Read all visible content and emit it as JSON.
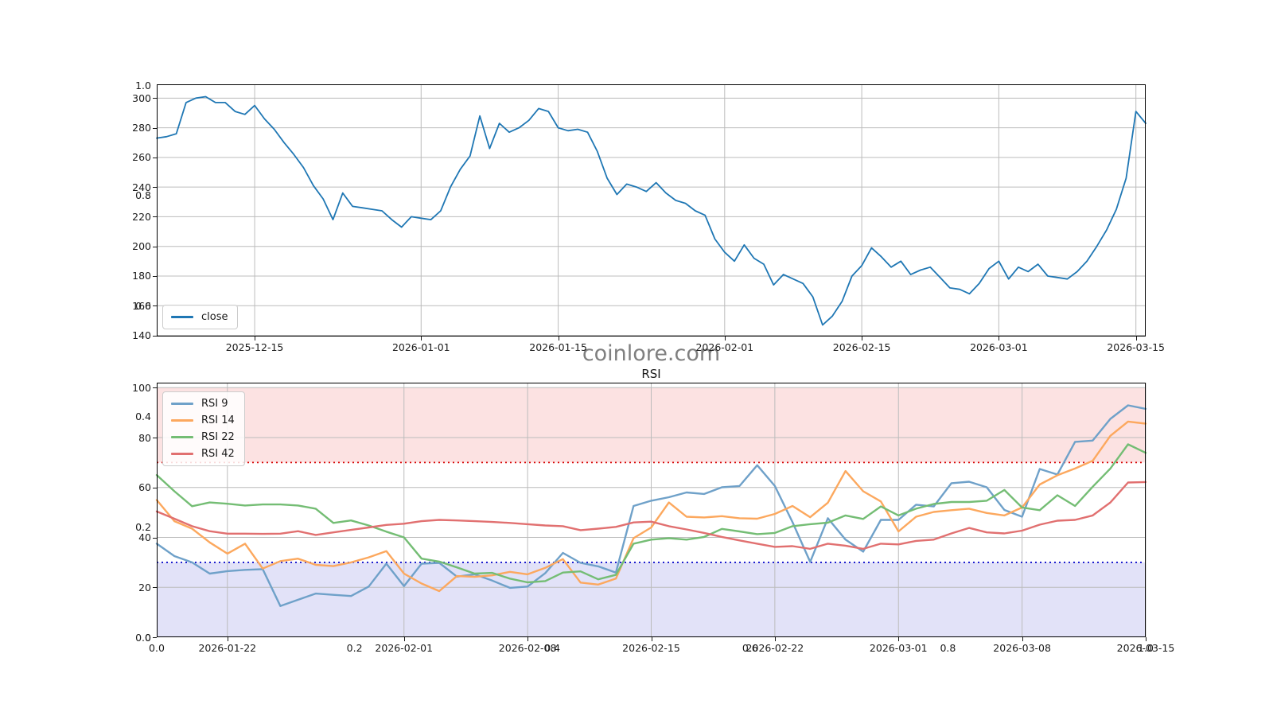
{
  "watermark": {
    "text": "coinlore.com"
  },
  "titles": {
    "rsi_chart_title": "RSI"
  },
  "colors": {
    "close_line": "#1f77b4",
    "rsi9_line": "#6fa1c9",
    "rsi14_line": "#fca85e",
    "rsi22_line": "#74bd74",
    "rsi42_line": "#e17070",
    "overbought_band": "#fce2e2",
    "oversold_band": "#e2e2f8",
    "overbought_dotted_line": "#d60000",
    "oversold_dotted_line": "#0000c8",
    "grid": "#bcbcbc",
    "spine": "#000000"
  },
  "legend_top": {
    "items": [
      {
        "label": "close",
        "color": "#1f77b4"
      }
    ]
  },
  "legend_rsi": {
    "items": [
      {
        "label": "RSI 9",
        "color": "#6fa1c9"
      },
      {
        "label": "RSI 14",
        "color": "#fca85e"
      },
      {
        "label": "RSI 22",
        "color": "#74bd74"
      },
      {
        "label": "RSI 42",
        "color": "#e17070"
      }
    ]
  },
  "hidden_axis": {
    "yticks": [
      {
        "label": "1.0",
        "t": 1.0
      },
      {
        "label": "0.8",
        "t": 0.8
      },
      {
        "label": "0.6",
        "t": 0.6
      },
      {
        "label": "0.4",
        "t": 0.4
      },
      {
        "label": "0.2",
        "t": 0.2
      },
      {
        "label": "0.0",
        "t": 0.0
      }
    ],
    "xticks": [
      {
        "label": "0.0",
        "t": 0.0
      },
      {
        "label": "0.2",
        "t": 0.2
      },
      {
        "label": "0.4",
        "t": 0.4
      },
      {
        "label": "0.6",
        "t": 0.6
      },
      {
        "label": "0.8",
        "t": 0.8
      },
      {
        "label": "1.0",
        "t": 1.0
      }
    ]
  },
  "chart_data": [
    {
      "type": "line",
      "title": "",
      "xlabel": "",
      "ylabel": "",
      "grid": true,
      "legend_position": "lower left",
      "x_start_date": "2025-12-05",
      "x_end_date": "2026-03-16",
      "ylim": [
        139.2,
        309.3
      ],
      "yticks": [
        {
          "label": "300",
          "v": 300
        },
        {
          "label": "280",
          "v": 280
        },
        {
          "label": "260",
          "v": 260
        },
        {
          "label": "240",
          "v": 240
        },
        {
          "label": "220",
          "v": 220
        },
        {
          "label": "200",
          "v": 200
        },
        {
          "label": "180",
          "v": 180
        },
        {
          "label": "160",
          "v": 160
        },
        {
          "label": "140",
          "v": 140
        }
      ],
      "xticks": [
        {
          "label": "2025-12-15",
          "day": 10
        },
        {
          "label": "2026-01-01",
          "day": 27
        },
        {
          "label": "2026-01-15",
          "day": 41
        },
        {
          "label": "2026-02-01",
          "day": 58
        },
        {
          "label": "2026-02-15",
          "day": 72
        },
        {
          "label": "2026-03-01",
          "day": 86
        },
        {
          "label": "2026-03-15",
          "day": 100
        }
      ],
      "series": [
        {
          "name": "close",
          "color": "#1f77b4",
          "width": 1.8,
          "values": [
            273,
            274,
            276,
            297,
            300,
            301,
            297,
            297,
            291,
            289,
            295,
            286,
            279,
            270,
            262,
            253,
            241,
            232,
            218,
            236,
            227,
            226,
            225,
            224,
            218,
            213,
            220,
            219,
            218,
            224,
            240,
            252,
            261,
            288,
            266,
            283,
            277,
            280,
            285,
            293,
            291,
            280,
            278,
            279,
            277,
            264,
            246,
            235,
            242,
            240,
            237,
            243,
            236,
            231,
            229,
            224,
            221,
            205,
            196,
            190,
            201,
            192,
            188,
            174,
            181,
            178,
            175,
            166,
            147,
            153,
            163,
            180,
            187,
            199,
            193,
            186,
            190,
            181,
            184,
            186,
            179,
            172,
            171,
            168,
            175,
            185,
            190,
            178,
            186,
            183,
            188,
            180,
            179,
            178,
            183,
            190,
            200,
            211,
            225,
            246,
            291,
            283
          ]
        }
      ]
    },
    {
      "type": "line",
      "title": "RSI",
      "xlabel": "",
      "ylabel": "",
      "grid": true,
      "legend_position": "upper left",
      "x_start_date": "2026-01-18",
      "x_end_date": "2026-03-15",
      "ylim": [
        0,
        102
      ],
      "bands": [
        {
          "from": 70,
          "to": 100,
          "color": "#fce2e2",
          "name": "overbought-zone"
        },
        {
          "from": 0,
          "to": 30,
          "color": "#e2e2f8",
          "name": "oversold-zone"
        }
      ],
      "hlines": [
        {
          "v": 70,
          "color": "#d60000",
          "style": "dotted",
          "name": "overbought-threshold"
        },
        {
          "v": 30,
          "color": "#0000c8",
          "style": "dotted",
          "name": "oversold-threshold"
        }
      ],
      "yticks": [
        {
          "label": "100",
          "v": 100
        },
        {
          "label": "80",
          "v": 80
        },
        {
          "label": "60",
          "v": 60
        },
        {
          "label": "40",
          "v": 40
        },
        {
          "label": "20",
          "v": 20
        },
        {
          "label": "0",
          "v": 0
        }
      ],
      "xticks": [
        {
          "label": "2026-01-22",
          "day": 4
        },
        {
          "label": "2026-02-01",
          "day": 14
        },
        {
          "label": "2026-02-08",
          "day": 21
        },
        {
          "label": "2026-02-15",
          "day": 28
        },
        {
          "label": "2026-02-22",
          "day": 35
        },
        {
          "label": "2026-03-01",
          "day": 42
        },
        {
          "label": "2026-03-08",
          "day": 49
        },
        {
          "label": "2026-03-15",
          "day": 56
        }
      ],
      "series": [
        {
          "name": "RSI 9",
          "color": "#6fa1c9",
          "width": 2.4,
          "values": [
            37.5,
            32.5,
            30,
            25.5,
            26.5,
            27,
            27.3,
            12.5,
            15,
            17.5,
            17,
            16.5,
            20.3,
            29.5,
            20.5,
            29.5,
            29.8,
            24.3,
            25.2,
            22.7,
            19.8,
            20.3,
            25.7,
            33.8,
            29.8,
            28.4,
            25.9,
            52.6,
            54.7,
            56.1,
            58,
            57.4,
            60.1,
            60.6,
            68.9,
            60.6,
            46.1,
            30.2,
            47.7,
            39.1,
            34.3,
            47,
            47,
            53.1,
            52.4,
            61.7,
            62.3,
            60.1,
            51,
            48.3,
            67.4,
            65.2,
            78.3,
            78.8,
            87.5,
            92.9,
            91.5
          ]
        },
        {
          "name": "RSI 14",
          "color": "#fca85e",
          "width": 2.4,
          "values": [
            55,
            46.5,
            43.5,
            38,
            33.5,
            37.5,
            27.5,
            30.5,
            31.5,
            29,
            28.5,
            30,
            32,
            34.5,
            25.5,
            21.5,
            18.5,
            24.5,
            24.2,
            24.8,
            26.2,
            25.2,
            27.8,
            31.3,
            21.9,
            21.1,
            23.5,
            39.7,
            44,
            54,
            48.3,
            48,
            48.5,
            47.7,
            47.5,
            49.4,
            52.6,
            48.1,
            53.9,
            66.6,
            58.5,
            54.4,
            42.4,
            48.3,
            50.2,
            50.9,
            51.5,
            49.8,
            48.8,
            52,
            61.2,
            64.9,
            67.6,
            70.7,
            80.7,
            86.4,
            85.6
          ]
        },
        {
          "name": "RSI 22",
          "color": "#74bd74",
          "width": 2.4,
          "values": [
            65,
            58.5,
            52.5,
            54,
            53.5,
            52.8,
            53.2,
            53.2,
            52.8,
            51.5,
            45.8,
            46.8,
            44.8,
            42.3,
            40,
            31.5,
            30.3,
            28,
            25.5,
            25.8,
            23.5,
            22,
            22.5,
            25.9,
            26.4,
            23.2,
            25,
            37.5,
            39.1,
            39.7,
            39.1,
            40.2,
            43.4,
            42.4,
            41.3,
            41.8,
            44.5,
            45.3,
            45.9,
            48.8,
            47.4,
            52.4,
            48.8,
            51.5,
            53.4,
            54.2,
            54.2,
            54.7,
            59,
            52,
            50.9,
            56.9,
            52.6,
            60.3,
            67.6,
            77.3,
            73.9
          ]
        },
        {
          "name": "RSI 42",
          "color": "#e17070",
          "width": 2.4,
          "values": [
            50.4,
            47.5,
            44.5,
            42.5,
            41.5,
            41.5,
            41.4,
            41.5,
            42.5,
            41,
            42,
            43,
            44,
            45,
            45.5,
            46.5,
            47,
            46.8,
            46.5,
            46.2,
            45.8,
            45.3,
            44.8,
            44.5,
            42.9,
            43.5,
            44.2,
            46,
            46.3,
            44.5,
            43.2,
            41.8,
            40.2,
            38.8,
            37.5,
            36.2,
            36.5,
            35.4,
            37.5,
            36.7,
            35.4,
            37.5,
            37.2,
            38.6,
            39.1,
            41.6,
            43.8,
            42,
            41.6,
            42.7,
            45.1,
            46.7,
            47,
            48.8,
            54,
            62,
            62.2
          ]
        }
      ]
    }
  ]
}
